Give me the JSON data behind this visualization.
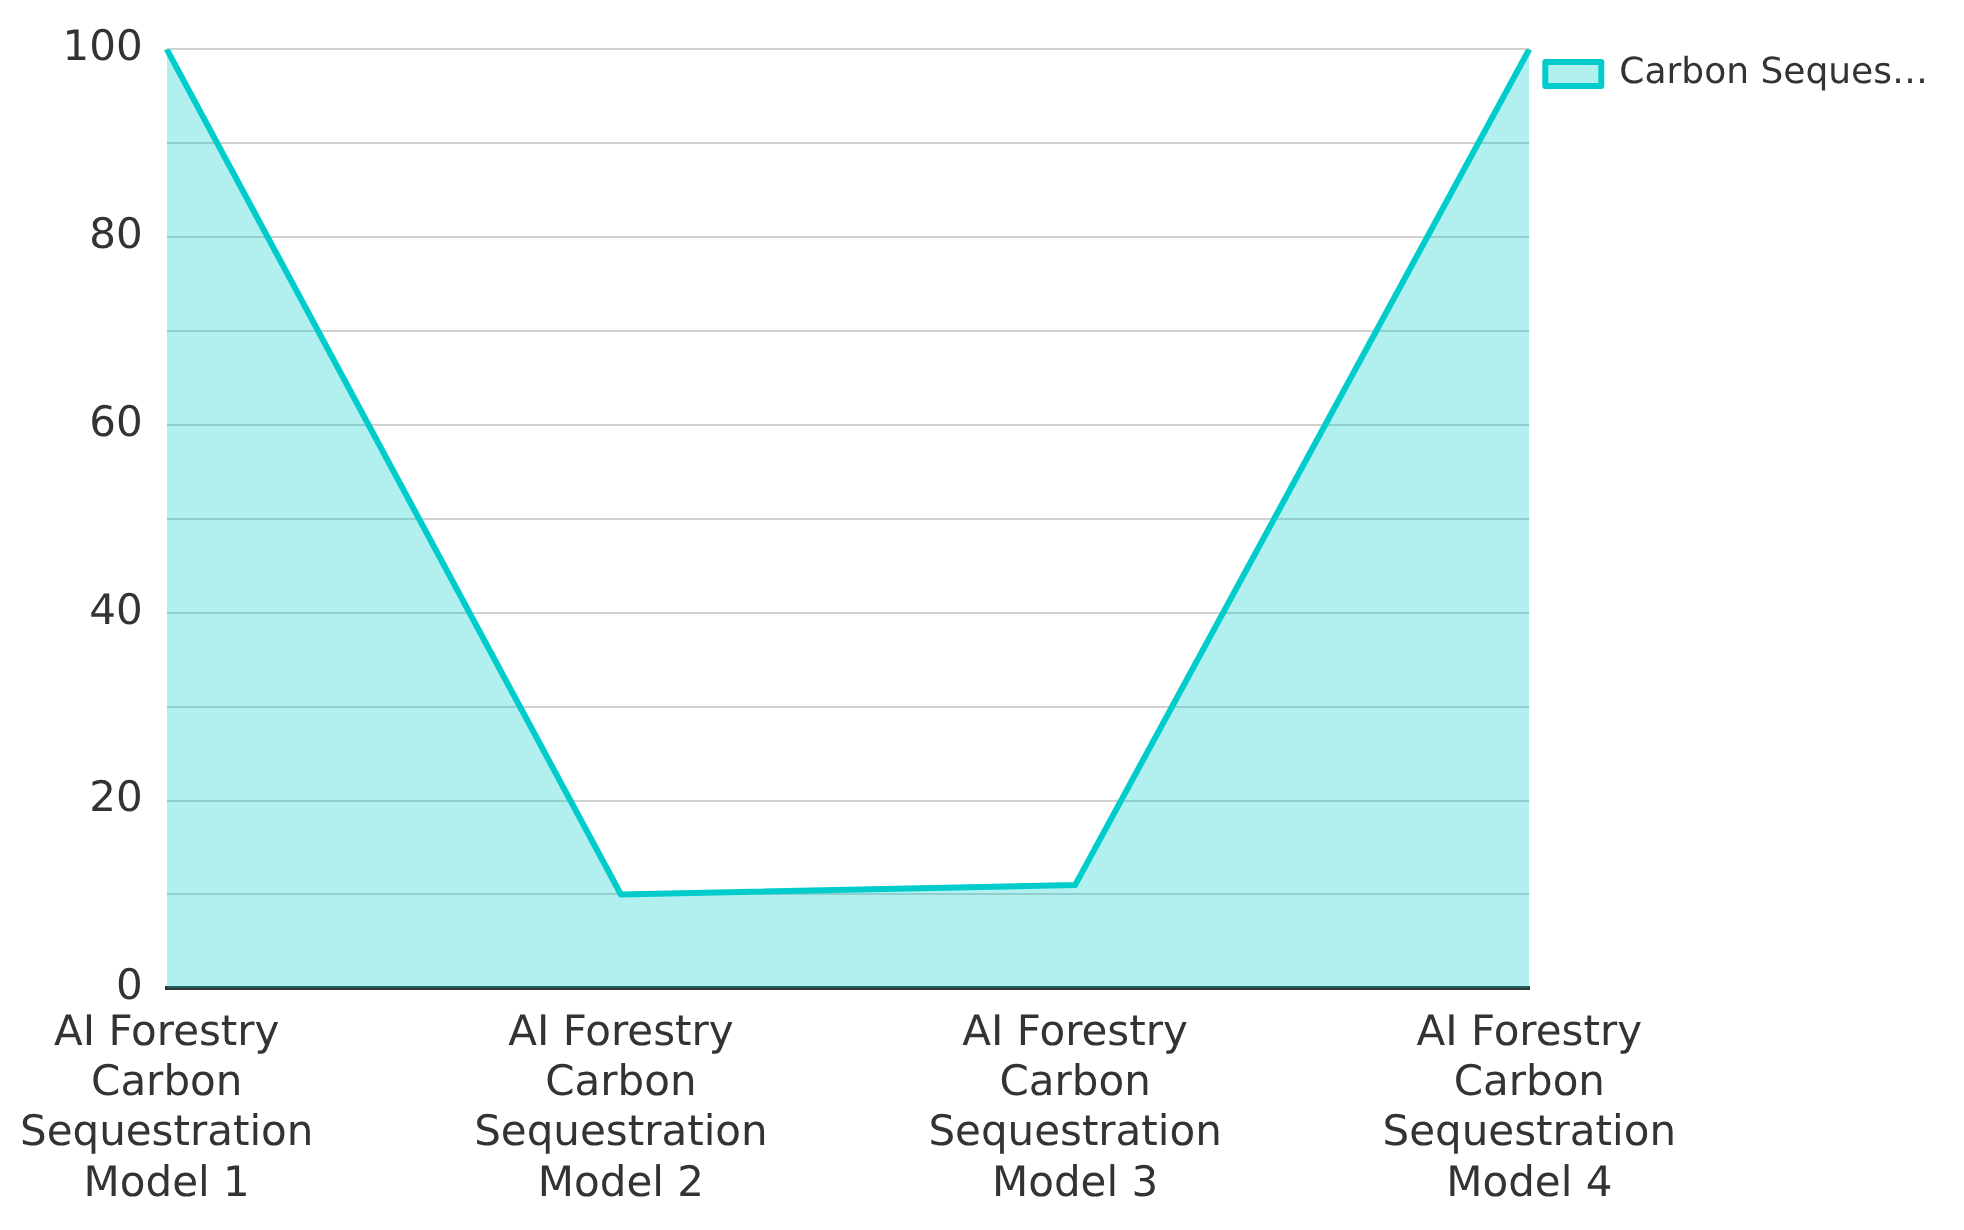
{
  "chart_data": {
    "type": "area",
    "categories": [
      "AI Forestry Carbon Sequestration Model 1",
      "AI Forestry Carbon Sequestration Model 2",
      "AI Forestry Carbon Sequestration Model 3",
      "AI Forestry Carbon Sequestration Model 4"
    ],
    "series": [
      {
        "name": "Carbon Seques…",
        "color": "#00cccc",
        "values": [
          100,
          10,
          11,
          100
        ]
      }
    ],
    "ylim": [
      0,
      100
    ],
    "yticks": [
      0,
      {
        "value": 10,
        "label": null
      },
      20,
      {
        "value": 30,
        "label": null
      },
      40,
      {
        "value": 50,
        "label": null
      },
      60,
      {
        "value": 70,
        "label": null
      },
      80,
      {
        "value": 90,
        "label": null
      },
      100
    ],
    "grid": "y",
    "legend": "top right",
    "marker": "none",
    "line_style": "solid"
  }
}
